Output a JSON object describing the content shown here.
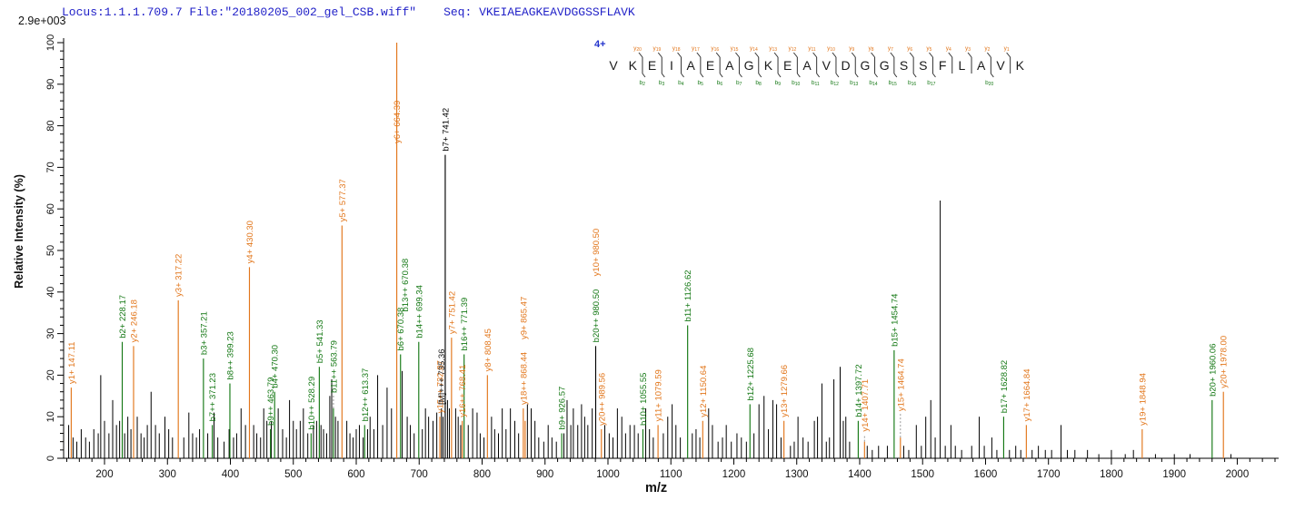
{
  "header": {
    "locus_file": "Locus:1.1.1.709.7 File:\"20180205_002_gel_CSB.wiff\"",
    "seq": "Seq: VKEIAEAGKEAVDGGSSFLAVK"
  },
  "colors": {
    "y_ion": "#E2761B",
    "b_ion": "#147814",
    "precursor": "#1A1A1A",
    "unassigned": "#000000",
    "header_text": "#2222C8",
    "charge": "#2233CC",
    "axis": "#000000",
    "dash_connector": "#999999"
  },
  "peptide": {
    "charge": "4+",
    "residues": [
      "V",
      "K",
      "E",
      "I",
      "A",
      "E",
      "A",
      "G",
      "K",
      "E",
      "A",
      "V",
      "D",
      "G",
      "G",
      "S",
      "S",
      "F",
      "L",
      "A",
      "V",
      "K"
    ],
    "y_ions": [
      null,
      "y20",
      "y19",
      "y18",
      "y17",
      "y16",
      "y15",
      "y14",
      "y13",
      "y12",
      "y11",
      "y10",
      "y9",
      "y8",
      "y7",
      "y6",
      "y5",
      "y4",
      "y3",
      "y2",
      "y1"
    ],
    "b_ions": [
      null,
      "b2",
      "b3",
      "b4",
      "b5",
      "b6",
      "b7",
      "b8",
      "b9",
      "b10",
      "b11",
      "b12",
      "b13",
      "b14",
      "b15",
      "b16",
      "b17",
      null,
      null,
      "b20",
      null
    ]
  },
  "chart_data": {
    "type": "bar",
    "xlabel": "m/z",
    "ylabel": "Relative  Intensity (%)",
    "base_intensity": "2.9e+003",
    "xlim": [
      135,
      2060
    ],
    "ylim": [
      0,
      100
    ],
    "x_tick_step": 100,
    "x_minor_step": 20,
    "x_tick_min": 200,
    "x_tick_max": 2000,
    "y_tick_step": 10,
    "y_minor_step": 2,
    "grid": false,
    "annotated_peaks": [
      {
        "m": 147.11,
        "i": 17,
        "t": "y",
        "l": "y1+ 147.11"
      },
      {
        "m": 228.17,
        "i": 28,
        "t": "b",
        "l": "b2+ 228.17"
      },
      {
        "m": 246.18,
        "i": 27,
        "t": "y",
        "l": "y2+ 246.18"
      },
      {
        "m": 317.22,
        "i": 38,
        "t": "y",
        "l": "y3+ 317.22"
      },
      {
        "m": 357.21,
        "i": 24,
        "t": "b",
        "l": "b3+ 357.21"
      },
      {
        "m": 371.23,
        "i": 8,
        "t": "b",
        "l": "b7++ 371.23"
      },
      {
        "m": 399.23,
        "i": 18,
        "t": "b",
        "l": "b8++ 399.23"
      },
      {
        "m": 430.3,
        "i": 46,
        "t": "y",
        "l": "y4+ 430.30"
      },
      {
        "m": 463.79,
        "i": 7,
        "t": "b",
        "l": "b9++ 463.79"
      },
      {
        "m": 470.3,
        "i": 16,
        "t": "b",
        "l": "b4+ 470.30"
      },
      {
        "m": 528.29,
        "i": 6,
        "t": "b",
        "l": "b10++ 528.29"
      },
      {
        "m": 541.33,
        "i": 22,
        "t": "b",
        "l": "b5+ 541.33"
      },
      {
        "m": 563.79,
        "i": 12,
        "t": "b",
        "l": "b11++ 563.79",
        "dash": 14
      },
      {
        "m": 577.37,
        "i": 56,
        "t": "y",
        "l": "y5+ 577.37"
      },
      {
        "m": 613.37,
        "i": 8,
        "t": "b",
        "l": "b12++ 613.37"
      },
      {
        "m": 664.39,
        "i": 100,
        "t": "y",
        "l": "y6+ 664.39"
      },
      {
        "m": 670.38,
        "i": 25,
        "t": "b",
        "l": "b6+ 670.38",
        "l2": "b13++ 670.38",
        "l2c": "b",
        "l2dx": 5,
        "l2dy": -43
      },
      {
        "m": 699.34,
        "i": 28,
        "t": "b",
        "l": "b14++ 699.34"
      },
      {
        "m": 732.87,
        "i": 10,
        "t": "y",
        "l": "y15++ 732.87"
      },
      {
        "m": 735.36,
        "i": 12,
        "t": "p",
        "l": "[M]+++ 735.36"
      },
      {
        "m": 741.42,
        "i": 73,
        "t": "u",
        "l": "b7+ 741.42",
        "lc": "u"
      },
      {
        "m": 751.42,
        "i": 29,
        "t": "y",
        "l": "y7+ 751.42"
      },
      {
        "m": 768.41,
        "i": 9,
        "t": "y",
        "l": "y16++ 768.41"
      },
      {
        "m": 771.39,
        "i": 25,
        "t": "b",
        "l": "b16++ 771.39"
      },
      {
        "m": 808.45,
        "i": 20,
        "t": "y",
        "l": "y8+ 808.45"
      },
      {
        "m": 865.47,
        "i": 12,
        "t": "y",
        "l": "y18++ 868.44",
        "l2": "y9+ 865.47",
        "l2c": "y",
        "l2dx": 0,
        "l2dy": -72
      },
      {
        "m": 868.44,
        "i": 9,
        "t": "y"
      },
      {
        "m": 926.57,
        "i": 6,
        "t": "b",
        "l": "b9+ 926.57"
      },
      {
        "m": 980.5,
        "i": 27,
        "t": "u",
        "l": "b20++ 980.50",
        "lc": "b",
        "l2": "y10+ 980.50",
        "l2c": "y",
        "l2dx": 0,
        "l2dy": -73
      },
      {
        "m": 989.56,
        "i": 7,
        "t": "y",
        "l": "y20++ 989.56"
      },
      {
        "m": 1055.55,
        "i": 7,
        "t": "b",
        "l": "b10+ 1055.55"
      },
      {
        "m": 1079.59,
        "i": 8,
        "t": "y",
        "l": "y11+ 1079.59"
      },
      {
        "m": 1126.62,
        "i": 32,
        "t": "b",
        "l": "b11+ 1126.62"
      },
      {
        "m": 1150.64,
        "i": 9,
        "t": "y",
        "l": "y12+ 1150.64"
      },
      {
        "m": 1225.68,
        "i": 13,
        "t": "b",
        "l": "b12+ 1225.68"
      },
      {
        "m": 1279.66,
        "i": 9,
        "t": "y",
        "l": "y13+ 1279.66"
      },
      {
        "m": 1397.72,
        "i": 9,
        "t": "b",
        "l": "b14+ 1397.72"
      },
      {
        "m": 1407.71,
        "i": 4,
        "t": "y",
        "l": "y14+ 1407.71",
        "dash": 8
      },
      {
        "m": 1454.74,
        "i": 26,
        "t": "b",
        "l": "b15+ 1454.74"
      },
      {
        "m": 1464.74,
        "i": 5,
        "t": "y",
        "l": "y15+ 1464.74",
        "dash": 26
      },
      {
        "m": 1628.82,
        "i": 10,
        "t": "b",
        "l": "b17+ 1628.82"
      },
      {
        "m": 1664.84,
        "i": 8,
        "t": "y",
        "l": "y17+ 1664.84"
      },
      {
        "m": 1848.94,
        "i": 7,
        "t": "y",
        "l": "y19+ 1848.94"
      },
      {
        "m": 1960.06,
        "i": 14,
        "t": "b",
        "l": "b20+ 1960.06"
      },
      {
        "m": 1978.0,
        "i": 16,
        "t": "y",
        "l": "y20+ 1978.00"
      }
    ],
    "unassigned_peaks": [
      [
        143,
        8
      ],
      [
        150,
        5
      ],
      [
        156,
        4
      ],
      [
        163,
        7
      ],
      [
        170,
        5
      ],
      [
        176,
        4
      ],
      [
        183,
        7
      ],
      [
        190,
        6
      ],
      [
        194,
        20
      ],
      [
        200,
        9
      ],
      [
        207,
        6
      ],
      [
        213,
        14
      ],
      [
        219,
        8
      ],
      [
        224,
        9
      ],
      [
        232,
        6
      ],
      [
        237,
        10
      ],
      [
        242,
        7
      ],
      [
        252,
        10
      ],
      [
        258,
        6
      ],
      [
        263,
        5
      ],
      [
        268,
        8
      ],
      [
        274,
        16
      ],
      [
        281,
        8
      ],
      [
        287,
        6
      ],
      [
        296,
        10
      ],
      [
        302,
        7
      ],
      [
        308,
        5
      ],
      [
        326,
        5
      ],
      [
        334,
        11
      ],
      [
        340,
        6
      ],
      [
        346,
        5
      ],
      [
        351,
        7
      ],
      [
        364,
        6
      ],
      [
        374,
        11
      ],
      [
        380,
        5
      ],
      [
        390,
        4
      ],
      [
        398,
        7
      ],
      [
        405,
        5
      ],
      [
        410,
        6
      ],
      [
        417,
        12
      ],
      [
        424,
        8
      ],
      [
        437,
        8
      ],
      [
        442,
        6
      ],
      [
        448,
        5
      ],
      [
        453,
        12
      ],
      [
        458,
        9
      ],
      [
        465,
        9
      ],
      [
        476,
        12
      ],
      [
        483,
        7
      ],
      [
        489,
        5
      ],
      [
        494,
        14
      ],
      [
        500,
        9
      ],
      [
        505,
        7
      ],
      [
        511,
        9
      ],
      [
        516,
        12
      ],
      [
        523,
        6
      ],
      [
        532,
        8
      ],
      [
        537,
        9
      ],
      [
        544,
        8
      ],
      [
        548,
        7
      ],
      [
        553,
        6
      ],
      [
        558,
        15
      ],
      [
        561,
        19
      ],
      [
        567,
        10
      ],
      [
        571,
        9
      ],
      [
        585,
        9
      ],
      [
        590,
        6
      ],
      [
        595,
        5
      ],
      [
        600,
        7
      ],
      [
        605,
        8
      ],
      [
        611,
        5
      ],
      [
        618,
        7
      ],
      [
        622,
        10
      ],
      [
        628,
        7
      ],
      [
        634,
        20
      ],
      [
        642,
        8
      ],
      [
        649,
        17
      ],
      [
        656,
        12
      ],
      [
        673,
        21
      ],
      [
        681,
        10
      ],
      [
        686,
        8
      ],
      [
        692,
        6
      ],
      [
        705,
        7
      ],
      [
        710,
        12
      ],
      [
        715,
        10
      ],
      [
        722,
        9
      ],
      [
        728,
        11
      ],
      [
        738,
        10
      ],
      [
        745,
        14
      ],
      [
        748,
        12
      ],
      [
        758,
        12
      ],
      [
        762,
        10
      ],
      [
        766,
        8
      ],
      [
        778,
        8
      ],
      [
        785,
        12
      ],
      [
        792,
        11
      ],
      [
        797,
        6
      ],
      [
        803,
        5
      ],
      [
        815,
        10
      ],
      [
        820,
        7
      ],
      [
        826,
        6
      ],
      [
        832,
        12
      ],
      [
        838,
        7
      ],
      [
        845,
        12
      ],
      [
        852,
        9
      ],
      [
        858,
        6
      ],
      [
        872,
        13
      ],
      [
        878,
        12
      ],
      [
        884,
        9
      ],
      [
        890,
        5
      ],
      [
        898,
        4
      ],
      [
        905,
        8
      ],
      [
        911,
        5
      ],
      [
        918,
        4
      ],
      [
        930,
        6
      ],
      [
        935,
        14
      ],
      [
        941,
        8
      ],
      [
        945,
        12
      ],
      [
        952,
        8
      ],
      [
        958,
        13
      ],
      [
        963,
        10
      ],
      [
        968,
        8
      ],
      [
        975,
        12
      ],
      [
        995,
        8
      ],
      [
        1002,
        6
      ],
      [
        1008,
        5
      ],
      [
        1015,
        12
      ],
      [
        1022,
        10
      ],
      [
        1028,
        6
      ],
      [
        1035,
        8
      ],
      [
        1042,
        8
      ],
      [
        1048,
        6
      ],
      [
        1060,
        12
      ],
      [
        1066,
        7
      ],
      [
        1072,
        5
      ],
      [
        1088,
        6
      ],
      [
        1095,
        10
      ],
      [
        1102,
        13
      ],
      [
        1108,
        8
      ],
      [
        1115,
        5
      ],
      [
        1134,
        6
      ],
      [
        1140,
        7
      ],
      [
        1146,
        5
      ],
      [
        1160,
        12
      ],
      [
        1166,
        8
      ],
      [
        1175,
        4
      ],
      [
        1182,
        5
      ],
      [
        1188,
        8
      ],
      [
        1196,
        4
      ],
      [
        1205,
        6
      ],
      [
        1212,
        5
      ],
      [
        1220,
        4
      ],
      [
        1232,
        6
      ],
      [
        1240,
        13
      ],
      [
        1248,
        15
      ],
      [
        1255,
        7
      ],
      [
        1262,
        14
      ],
      [
        1268,
        13
      ],
      [
        1275,
        5
      ],
      [
        1290,
        3
      ],
      [
        1296,
        4
      ],
      [
        1302,
        10
      ],
      [
        1310,
        5
      ],
      [
        1318,
        4
      ],
      [
        1328,
        9
      ],
      [
        1333,
        10
      ],
      [
        1340,
        18
      ],
      [
        1347,
        4
      ],
      [
        1352,
        5
      ],
      [
        1359,
        19
      ],
      [
        1369,
        22
      ],
      [
        1374,
        9
      ],
      [
        1378,
        10
      ],
      [
        1384,
        4
      ],
      [
        1412,
        3
      ],
      [
        1420,
        2
      ],
      [
        1430,
        3
      ],
      [
        1444,
        3
      ],
      [
        1470,
        3
      ],
      [
        1478,
        2
      ],
      [
        1490,
        8
      ],
      [
        1498,
        3
      ],
      [
        1505,
        10
      ],
      [
        1513,
        14
      ],
      [
        1520,
        5
      ],
      [
        1528,
        62
      ],
      [
        1536,
        3
      ],
      [
        1545,
        8
      ],
      [
        1552,
        3
      ],
      [
        1562,
        2
      ],
      [
        1578,
        3
      ],
      [
        1590,
        10
      ],
      [
        1598,
        3
      ],
      [
        1610,
        5
      ],
      [
        1618,
        2
      ],
      [
        1638,
        2
      ],
      [
        1648,
        3
      ],
      [
        1656,
        2
      ],
      [
        1674,
        2
      ],
      [
        1684,
        3
      ],
      [
        1695,
        2
      ],
      [
        1705,
        2
      ],
      [
        1720,
        8
      ],
      [
        1730,
        2
      ],
      [
        1742,
        2
      ],
      [
        1762,
        2
      ],
      [
        1780,
        1
      ],
      [
        1800,
        2
      ],
      [
        1822,
        1
      ],
      [
        1835,
        2
      ],
      [
        1870,
        1
      ],
      [
        1900,
        1
      ],
      [
        1925,
        1
      ],
      [
        1990,
        1
      ]
    ]
  }
}
